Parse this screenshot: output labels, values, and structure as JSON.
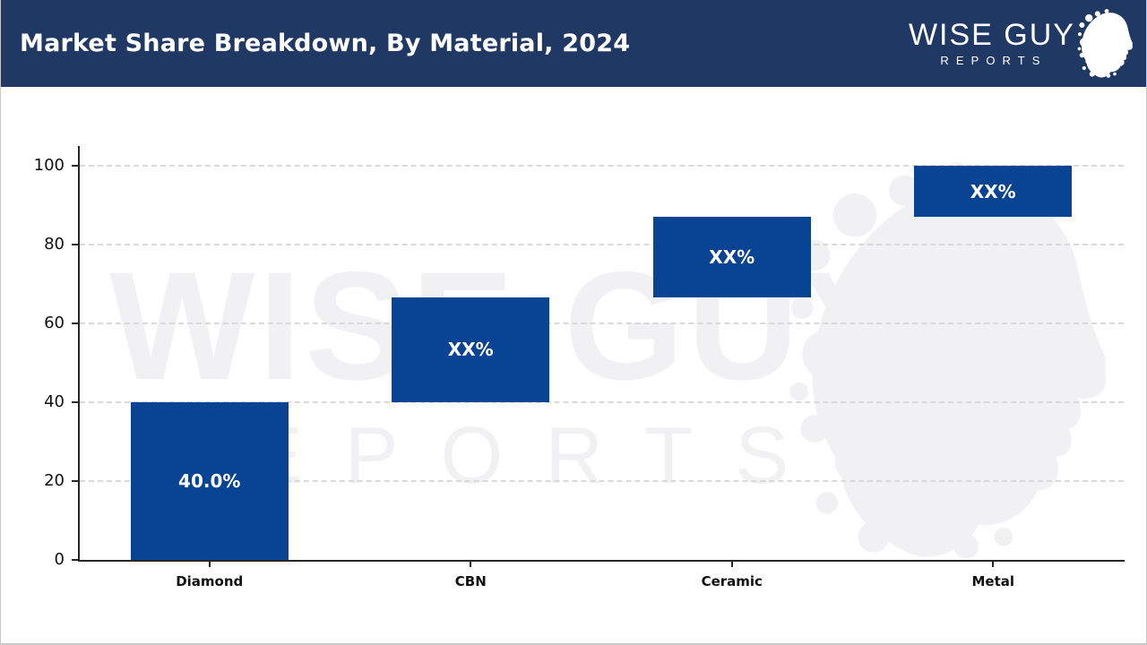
{
  "header": {
    "title": "Market Share Breakdown, By Material, 2024",
    "logo": {
      "brand_line1": "WISE GUY",
      "brand_line2": "REPORTS"
    }
  },
  "watermark": {
    "line1": "WISE GUY",
    "line2": "REPORTS"
  },
  "colors": {
    "header_bg": "#1f3864",
    "bar": "#084394",
    "grid": "#d9d9d9",
    "axis": "#262626",
    "bar_label_text": "#ffffff",
    "watermark": "#f1f1f3"
  },
  "chart_data": {
    "type": "bar",
    "variant": "waterfall",
    "title": "Market Share Breakdown, By Material, 2024",
    "categories": [
      "Diamond",
      "CBN",
      "Ceramic",
      "Metal"
    ],
    "segments": [
      {
        "category": "Diamond",
        "start": 0,
        "end": 40,
        "label": "40.0%"
      },
      {
        "category": "CBN",
        "start": 40,
        "end": 66.7,
        "label": "XX%"
      },
      {
        "category": "Ceramic",
        "start": 66.7,
        "end": 87,
        "label": "XX%"
      },
      {
        "category": "Metal",
        "start": 87,
        "end": 100,
        "label": "XX%"
      }
    ],
    "values_pct": [
      40.0,
      26.7,
      20.3,
      13.0
    ],
    "xlabel": "",
    "ylabel": "",
    "ylim": [
      0,
      100
    ],
    "yticks": [
      0,
      20,
      40,
      60,
      80,
      100
    ],
    "grid": "horizontal-dashed",
    "legend": "none"
  }
}
